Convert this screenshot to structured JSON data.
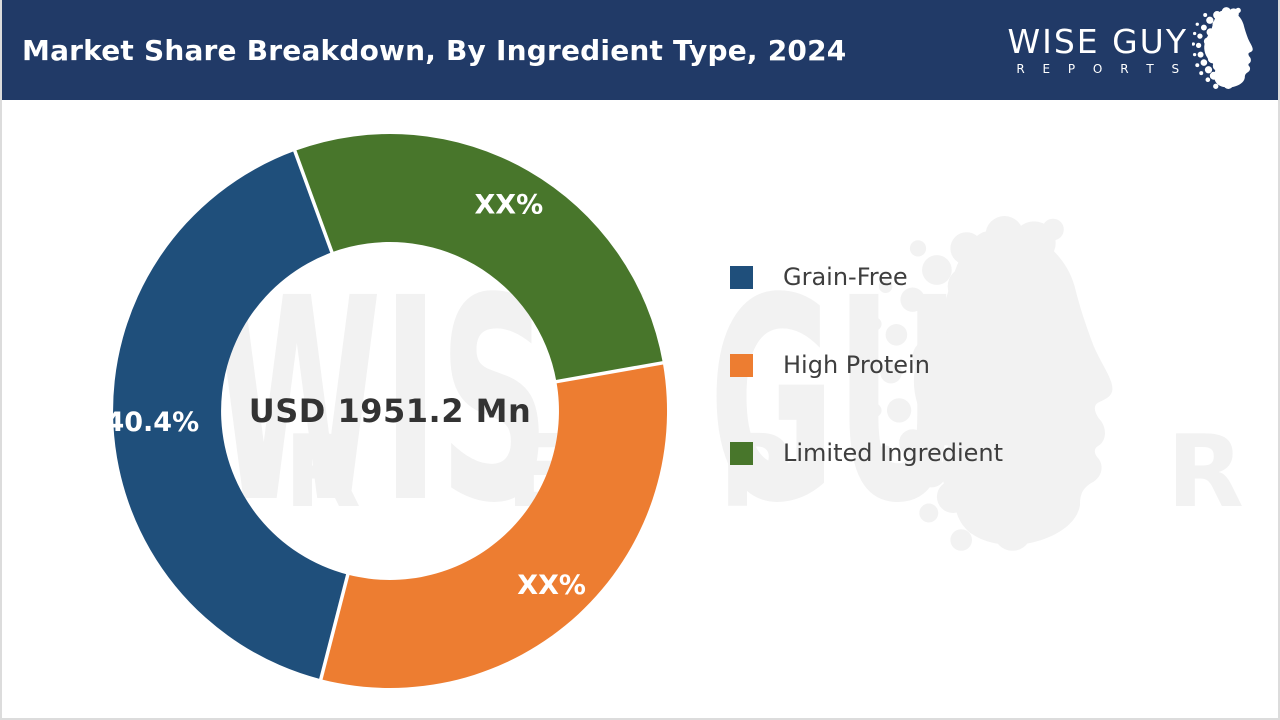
{
  "header": {
    "title": "Market Share Breakdown, By Ingredient Type, 2024",
    "logo": {
      "line1": "WISE GUY",
      "line2": "R E P O R T S"
    }
  },
  "watermark": {
    "line1": "WISE GUY",
    "line2": "R E P O R T S"
  },
  "chart_data": {
    "type": "pie",
    "subtype": "donut",
    "title": "Market Share Breakdown, By Ingredient Type, 2024",
    "center_label": "USD 1951.2 Mn",
    "start_angle_deg": 110.1,
    "direction": "counterclockwise",
    "inner_radius_ratio": 0.61,
    "legend_position": "right",
    "series": [
      {
        "label": "Grain-Free",
        "display_value": "40.4%",
        "value_pct": 40.4,
        "color": "#1F4F7B"
      },
      {
        "label": "High Protein",
        "display_value": "XX%",
        "value_pct": 31.8,
        "color": "#ED7D31"
      },
      {
        "label": "Limited Ingredient",
        "display_value": "XX%",
        "value_pct": 27.8,
        "color": "#48762B"
      }
    ]
  },
  "colors": {
    "header_bg": "#213A67",
    "watermark": "#F2F2F2",
    "center_text": "#333333",
    "legend_text": "#3E3E3E",
    "border": "#DCDCDC"
  }
}
